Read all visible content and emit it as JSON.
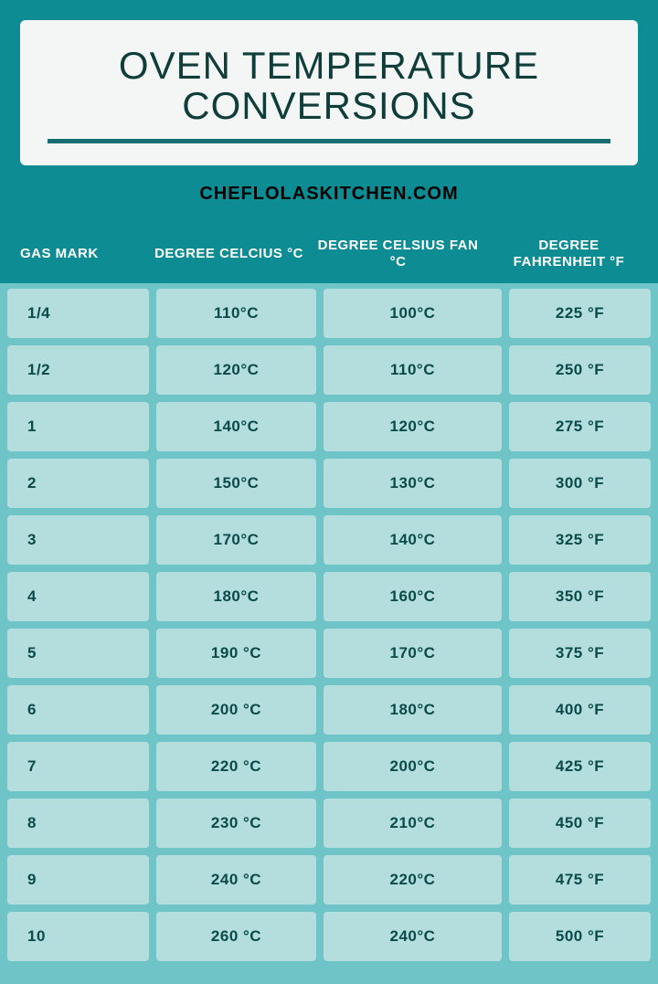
{
  "colors": {
    "outer_bg": "#0d8c93",
    "title_card_bg": "#f4f6f5",
    "title_text": "#0f3d3a",
    "divider": "#126e72",
    "url_text": "#000000",
    "header_bg": "#0d8c93",
    "header_text": "#ffffff",
    "rows_bg": "#6ec4c7",
    "cell_bg": "#b3dedd",
    "cell_text": "#0b4a4a"
  },
  "typography": {
    "title_fontsize": 42,
    "url_fontsize": 20,
    "header_fontsize": 15,
    "cell_fontsize": 17
  },
  "title": {
    "line1": "OVEN TEMPERATURE",
    "line2": "CONVERSIONS"
  },
  "site_url": "CHEFLOLASKITCHEN.COM",
  "headers": {
    "gas_mark": "GAS MARK",
    "celsius": "DEGREE CELCIUS  °C",
    "celsius_fan": "DEGREE CELSIUS FAN °C",
    "fahrenheit": "DEGREE FAHRENHEIT °F"
  },
  "rows": [
    {
      "gas_mark": "1/4",
      "celsius": "110°C",
      "celsius_fan": "100°C",
      "fahrenheit": "225 °F"
    },
    {
      "gas_mark": "1/2",
      "celsius": "120°C",
      "celsius_fan": "110°C",
      "fahrenheit": "250 °F"
    },
    {
      "gas_mark": "1",
      "celsius": "140°C",
      "celsius_fan": "120°C",
      "fahrenheit": "275 °F"
    },
    {
      "gas_mark": "2",
      "celsius": "150°C",
      "celsius_fan": "130°C",
      "fahrenheit": "300 °F"
    },
    {
      "gas_mark": "3",
      "celsius": "170°C",
      "celsius_fan": "140°C",
      "fahrenheit": "325 °F"
    },
    {
      "gas_mark": "4",
      "celsius": "180°C",
      "celsius_fan": "160°C",
      "fahrenheit": "350 °F"
    },
    {
      "gas_mark": "5",
      "celsius": "190 °C",
      "celsius_fan": "170°C",
      "fahrenheit": "375 °F"
    },
    {
      "gas_mark": "6",
      "celsius": "200 °C",
      "celsius_fan": "180°C",
      "fahrenheit": "400 °F"
    },
    {
      "gas_mark": "7",
      "celsius": "220 °C",
      "celsius_fan": "200°C",
      "fahrenheit": "425 °F"
    },
    {
      "gas_mark": "8",
      "celsius": "230 °C",
      "celsius_fan": "210°C",
      "fahrenheit": "450 °F"
    },
    {
      "gas_mark": "9",
      "celsius": "240 °C",
      "celsius_fan": "220°C",
      "fahrenheit": "475 °F"
    },
    {
      "gas_mark": "10",
      "celsius": "260 °C",
      "celsius_fan": "240°C",
      "fahrenheit": "500 °F"
    }
  ]
}
